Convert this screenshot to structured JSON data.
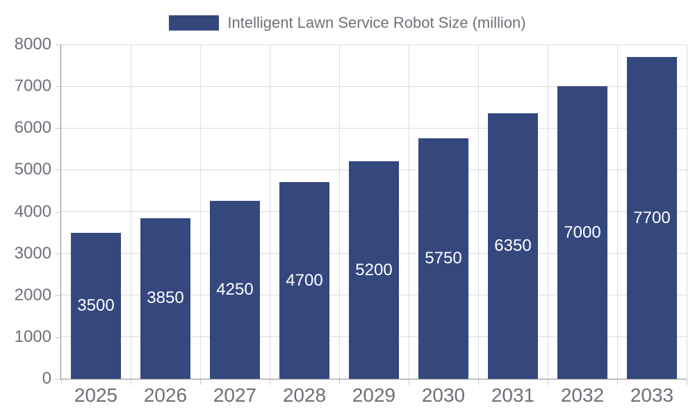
{
  "chart_data": {
    "type": "bar",
    "title": "Intelligent Lawn Service Robot Size (million)",
    "categories": [
      "2025",
      "2026",
      "2027",
      "2028",
      "2029",
      "2030",
      "2031",
      "2032",
      "2033"
    ],
    "values": [
      3500,
      3850,
      4250,
      4700,
      5200,
      5750,
      6350,
      7000,
      7700
    ],
    "xlabel": "",
    "ylabel": "",
    "ylim": [
      0,
      8000
    ],
    "yticks": [
      0,
      1000,
      2000,
      3000,
      4000,
      5000,
      6000,
      7000,
      8000
    ],
    "grid": true,
    "legend_position": "top-center",
    "value_labels": "centered-inside-bars",
    "colors": {
      "bar": "#35487E",
      "value_label": "#FFFFFF",
      "axis_line": "#8A8A8A",
      "grid_line": "#DCDCE0",
      "tick": "#C8C8CC",
      "text": "#6E7079",
      "background": "#FFFFFF"
    }
  }
}
